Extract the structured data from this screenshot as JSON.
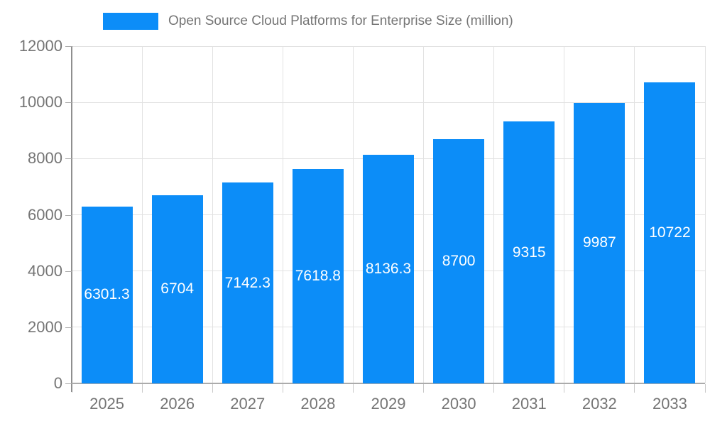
{
  "legend": {
    "label": "Open Source Cloud Platforms for Enterprise Size (million)"
  },
  "chart_data": {
    "type": "bar",
    "title": "Open Source Cloud Platforms for Enterprise Size (million)",
    "categories": [
      "2025",
      "2026",
      "2027",
      "2028",
      "2029",
      "2030",
      "2031",
      "2032",
      "2033"
    ],
    "values": [
      6301.3,
      6704,
      7142.3,
      7618.8,
      8136.3,
      8700,
      9315,
      9987,
      10722
    ],
    "value_labels": [
      "6301.3",
      "6704",
      "7142.3",
      "7618.8",
      "8136.3",
      "8700",
      "9315",
      "9987",
      "10722"
    ],
    "xlabel": "",
    "ylabel": "",
    "ylim": [
      0,
      12000
    ],
    "yticks": [
      0,
      2000,
      4000,
      6000,
      8000,
      10000,
      12000
    ],
    "grid": true,
    "legend_position": "top",
    "value_label_position": "inside-center",
    "colors": {
      "bar": "#0c8df8",
      "value_label_text": "#ffffff",
      "axis_text": "#757575",
      "grid_line": "#e2e2e2",
      "y_axis_line": "#8f8f8f",
      "x_axis_line": "#ababab",
      "x_tick": "#c9c9c9"
    }
  }
}
